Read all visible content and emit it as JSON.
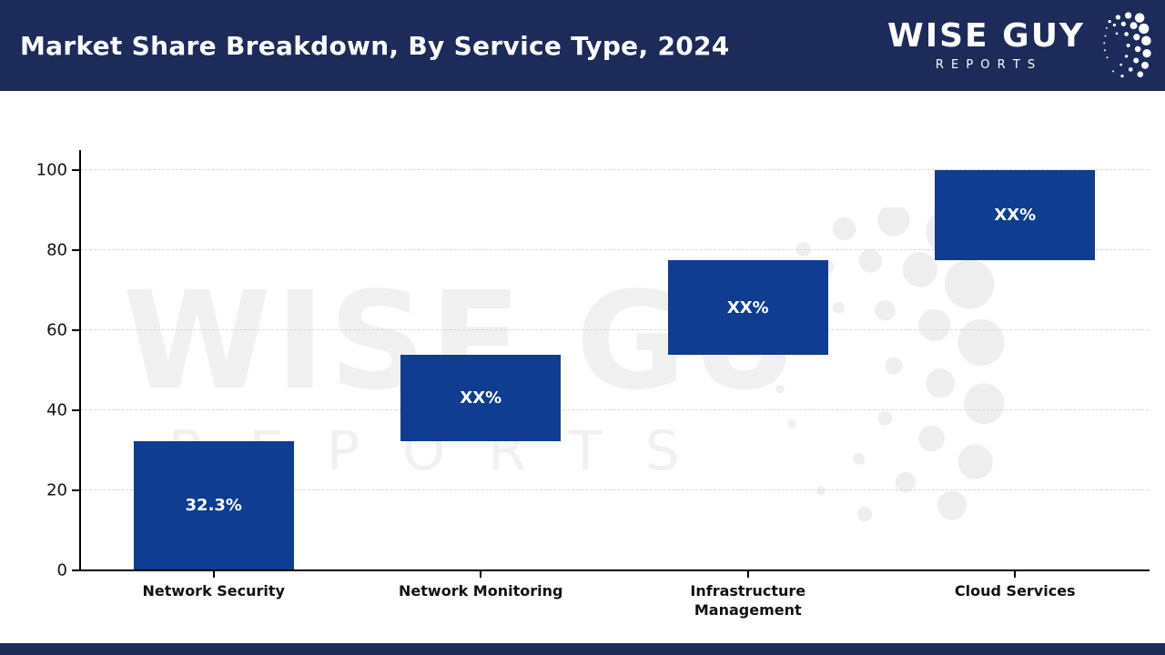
{
  "header": {
    "title": "Market Share Breakdown, By Service Type, 2024",
    "logo": {
      "line1": "WISE GUY",
      "line2": "R E P O R T S"
    }
  },
  "watermark": {
    "line1": "WISE GU",
    "line2": "R E P O R T S"
  },
  "chart_data": {
    "type": "bar",
    "subtype": "waterfall-stacked-percentage",
    "title": "Market Share Breakdown, By Service Type, 2024",
    "categories": [
      "Network Security",
      "Network Monitoring",
      "Infrastructure Management",
      "Cloud Services"
    ],
    "segments": [
      {
        "category": "Network Security",
        "start": 0,
        "end": 32.3,
        "label": "32.3%"
      },
      {
        "category": "Network Monitoring",
        "start": 32.3,
        "end": 53.8,
        "label": "XX%"
      },
      {
        "category": "Infrastructure Management",
        "start": 53.8,
        "end": 77.5,
        "label": "XX%"
      },
      {
        "category": "Cloud Services",
        "start": 77.5,
        "end": 100,
        "label": "XX%"
      }
    ],
    "ylim": [
      0,
      100
    ],
    "yticks": [
      0,
      20,
      40,
      60,
      80,
      100
    ],
    "grid": "dashed-horizontal",
    "legend": "none",
    "bar_color": "#0e3d91",
    "bar_label_color": "#ffffff"
  },
  "colors": {
    "header_bg": "#1c2b5a",
    "footer_bg": "#1c2b5a",
    "bar": "#0e3d91",
    "watermark": "#f0f0f0"
  }
}
